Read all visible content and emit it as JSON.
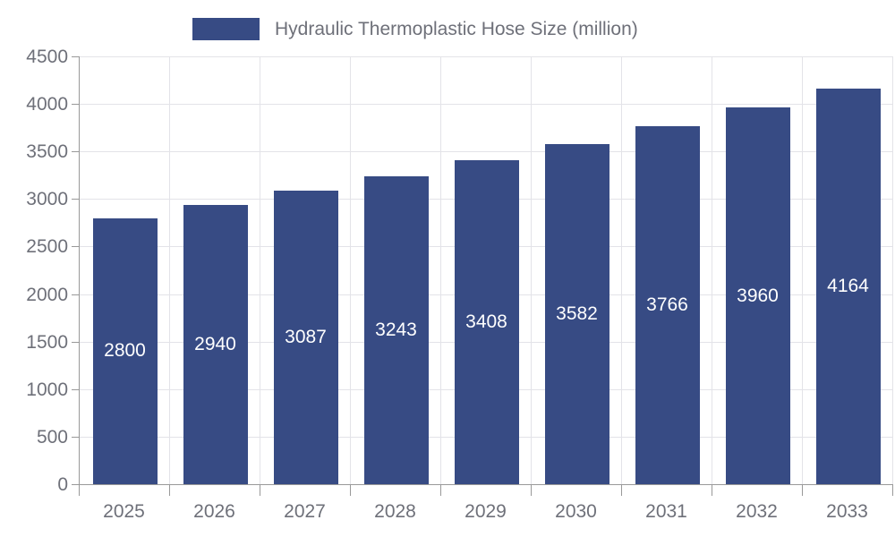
{
  "chart_data": {
    "type": "bar",
    "title": "Hydraulic Thermoplastic Hose Size (million)",
    "categories": [
      "2025",
      "2026",
      "2027",
      "2028",
      "2029",
      "2030",
      "2031",
      "2032",
      "2033"
    ],
    "values": [
      2800,
      2940,
      3087,
      3243,
      3408,
      3582,
      3766,
      3960,
      4164
    ],
    "value_labels_shown": true,
    "xlabel": "",
    "ylabel": "",
    "ylim": [
      0,
      4500
    ],
    "ytick_step": 500,
    "yticks": [
      0,
      500,
      1000,
      1500,
      2000,
      2500,
      3000,
      3500,
      4000,
      4500
    ],
    "grid": true,
    "legend_position": "top-center",
    "colors": {
      "bar": "#374b84",
      "axis_line": "#999999",
      "gridline": "#e3e3e8",
      "axis_text": "#6e7079",
      "value_text": "#ffffff",
      "background": "#ffffff"
    }
  }
}
